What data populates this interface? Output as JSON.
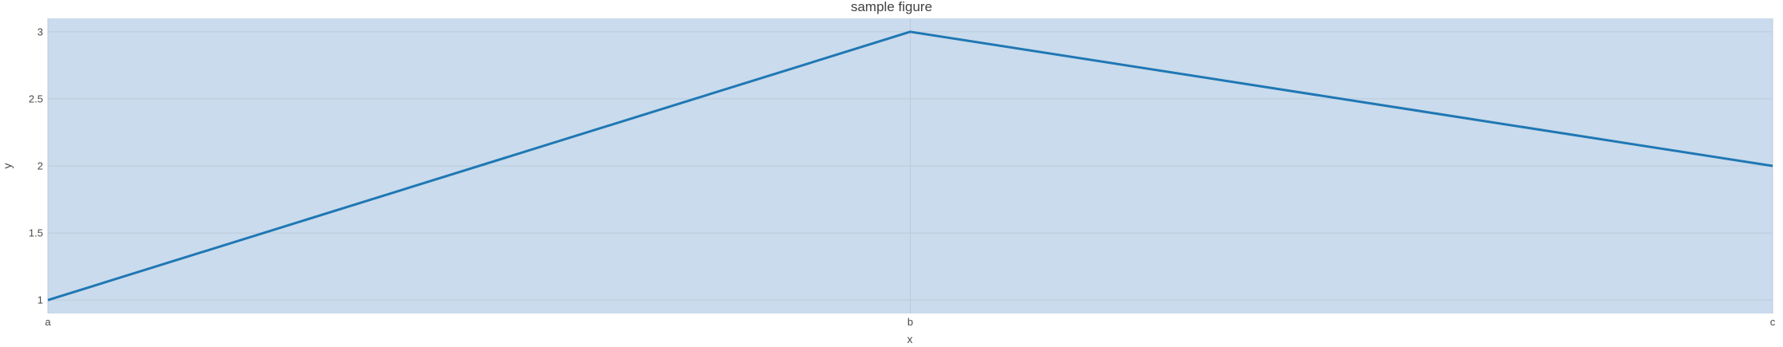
{
  "chart_data": {
    "type": "line",
    "title": "sample figure",
    "xlabel": "x",
    "ylabel": "y",
    "categories": [
      "a",
      "b",
      "c"
    ],
    "series": [
      {
        "name": "y",
        "values": [
          1,
          3,
          2
        ]
      }
    ],
    "ytick_values": [
      1,
      1.5,
      2,
      2.5,
      3
    ],
    "ytick_labels": [
      "1",
      "1.5",
      "2",
      "2.5",
      "3"
    ],
    "ylim": [
      0.9,
      3.1
    ],
    "grid": true,
    "legend": "none",
    "colors": {
      "line": "#1f77b4",
      "plot_background": "#c9dbec",
      "gridline": "#bccbdb",
      "figure_background": "#ffffff",
      "title_text": "#404040",
      "tick_text": "#4a4a4a",
      "axis_title_text": "#4a4a4a"
    }
  }
}
